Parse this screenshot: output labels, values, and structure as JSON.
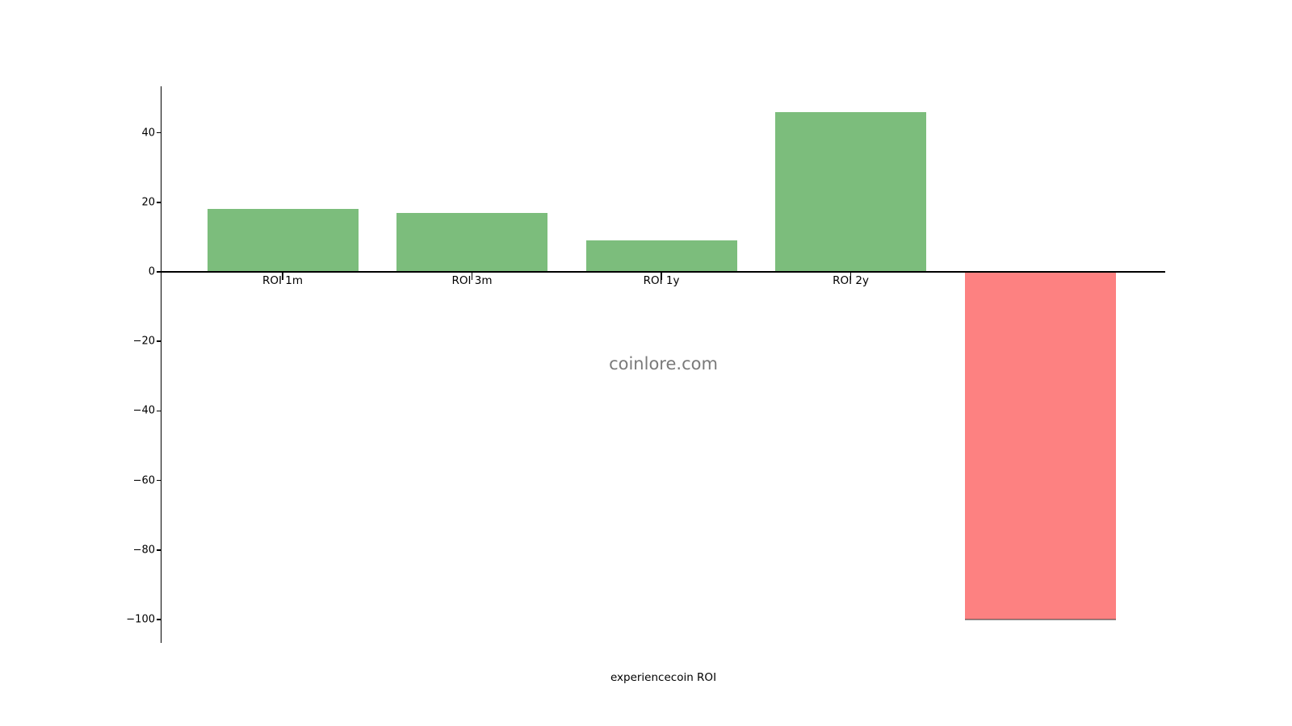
{
  "watermark": {
    "text": "coinlore.com",
    "color": "#7a7a7a"
  },
  "chart_data": {
    "type": "bar",
    "title": "experiencecoin ROI",
    "categories": [
      "ROI 1m",
      "ROI 3m",
      "ROI 1y",
      "ROI 2y",
      ""
    ],
    "values": [
      18,
      17,
      9,
      46,
      -100
    ],
    "colors": {
      "positive_bar": "#7cbd7c",
      "negative_bar": "#fd8181",
      "axis": "#000000"
    },
    "axis": {
      "y_ticks": [
        40,
        20,
        0,
        -20,
        -40,
        -60,
        -80,
        -100
      ],
      "ylim": [
        -107,
        53
      ],
      "grid": false,
      "legend": false
    }
  }
}
